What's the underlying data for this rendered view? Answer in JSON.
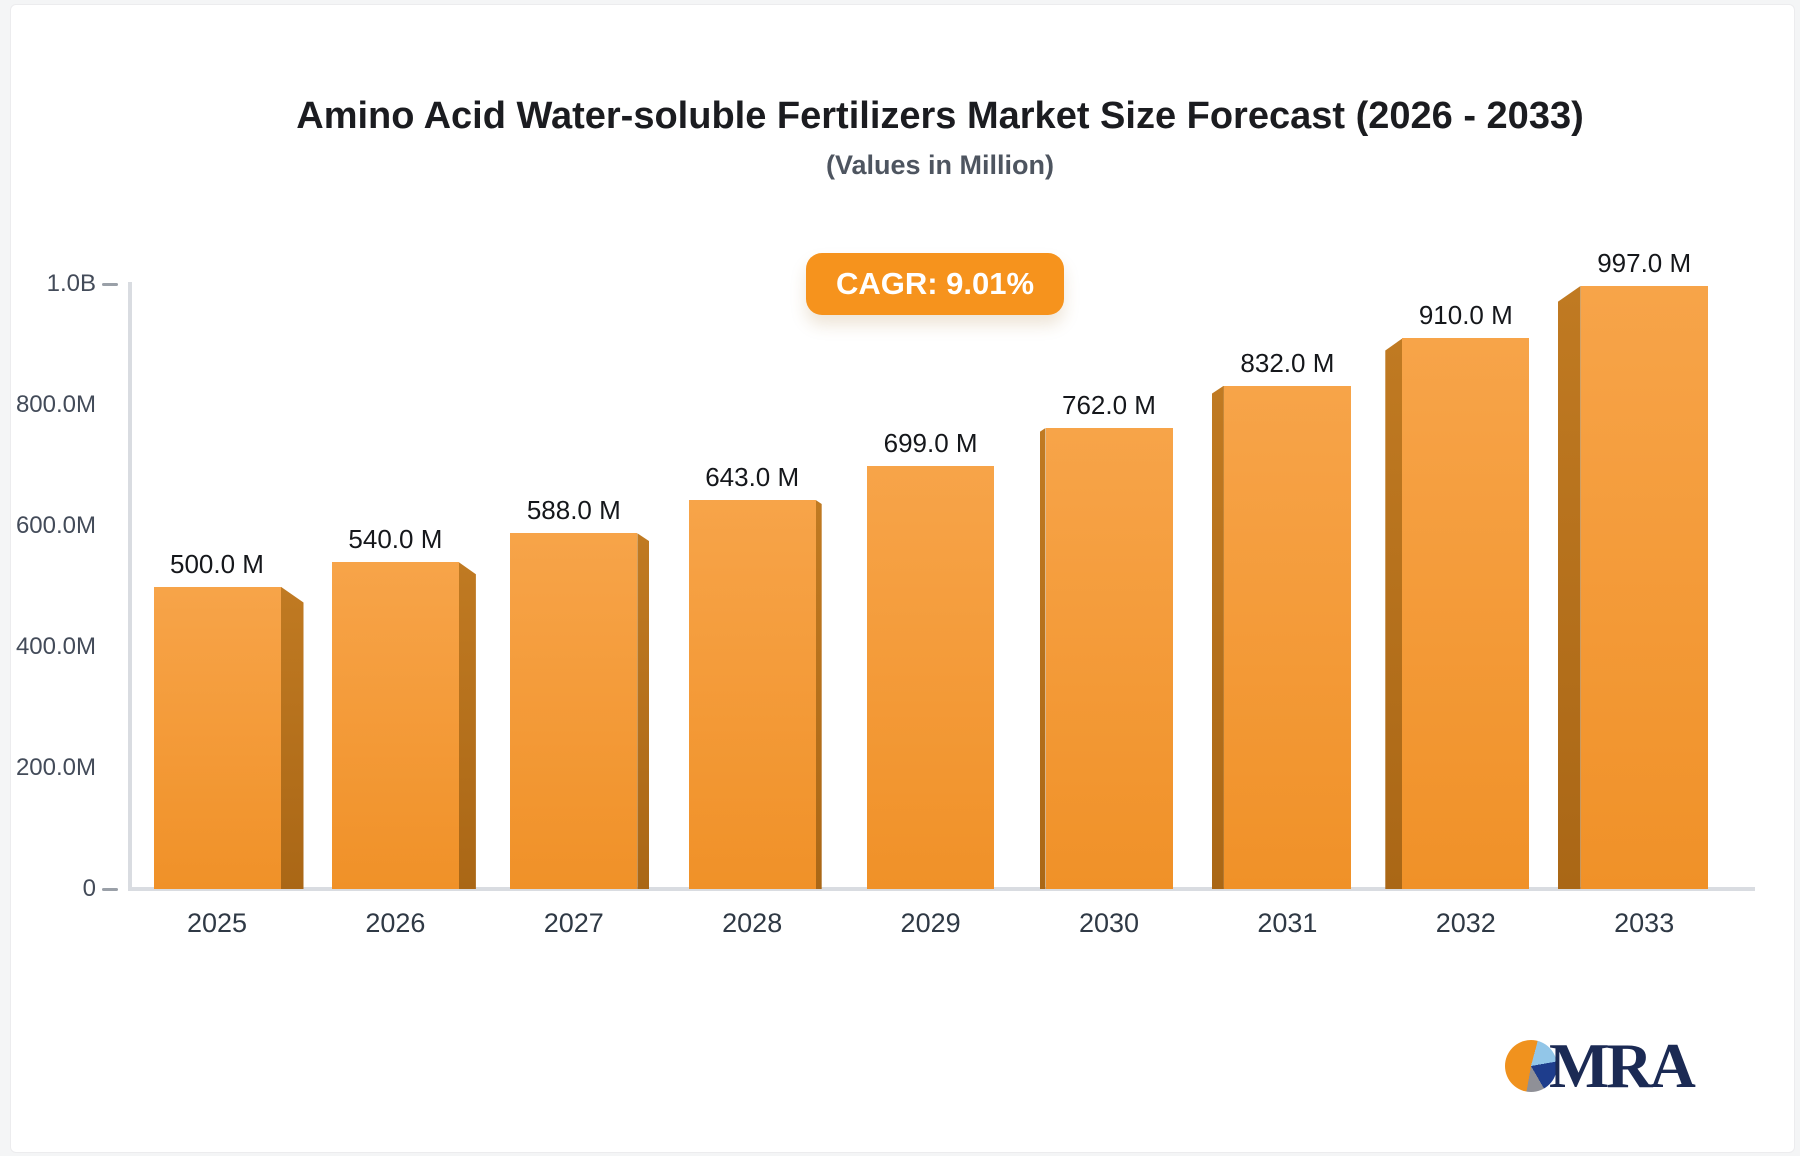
{
  "header": {
    "title": "Amino Acid Water-soluble Fertilizers Market Size Forecast (2026 - 2033)",
    "subtitle": "(Values in Million)"
  },
  "cagr_badge": {
    "label": "CAGR: 9.01%",
    "background": "#f6931d",
    "text_color": "#ffffff"
  },
  "chart_data": {
    "type": "bar",
    "title": "Amino Acid Water-soluble Fertilizers Market Size Forecast (2026 - 2033)",
    "subtitle": "(Values in Million)",
    "categories": [
      "2025",
      "2026",
      "2027",
      "2028",
      "2029",
      "2030",
      "2031",
      "2032",
      "2033"
    ],
    "values": [
      500,
      540,
      588,
      643,
      699,
      762,
      832,
      910,
      997
    ],
    "value_labels": [
      "500.0 M",
      "540.0 M",
      "588.0 M",
      "643.0 M",
      "699.0 M",
      "762.0 M",
      "832.0 M",
      "910.0 M",
      "997.0 M"
    ],
    "xlabel": "",
    "ylabel": "",
    "ylim": [
      0,
      1000
    ],
    "grid": false,
    "legend": "none",
    "y_ticks": [
      {
        "label": "1.0B",
        "value": 1000,
        "dash": true
      },
      {
        "label": "800.0M",
        "value": 800,
        "dash": false
      },
      {
        "label": "600.0M",
        "value": 600,
        "dash": false
      },
      {
        "label": "400.0M",
        "value": 400,
        "dash": false
      },
      {
        "label": "200.0M",
        "value": 200,
        "dash": false
      },
      {
        "label": "0",
        "value": 0,
        "dash": true
      }
    ],
    "bar_style": "3d-perspective",
    "colors": {
      "bar_top": "#f7a449",
      "bar_bottom": "#f09128",
      "bar_side_top": "#c07a22",
      "bar_side_bottom": "#aa6716",
      "axis_line": "#d9dce1",
      "tick_dash": "#9aa0a8",
      "value_label_text": "#15171b",
      "axis_label_text": "#2f3945"
    }
  },
  "logo": {
    "text": "MRA",
    "text_color": "#1b2a54",
    "pie_colors": {
      "orange": "#f0921e",
      "light_blue": "#92c6e8",
      "dark_blue": "#1e3d8c",
      "gray": "#8f9097"
    }
  }
}
